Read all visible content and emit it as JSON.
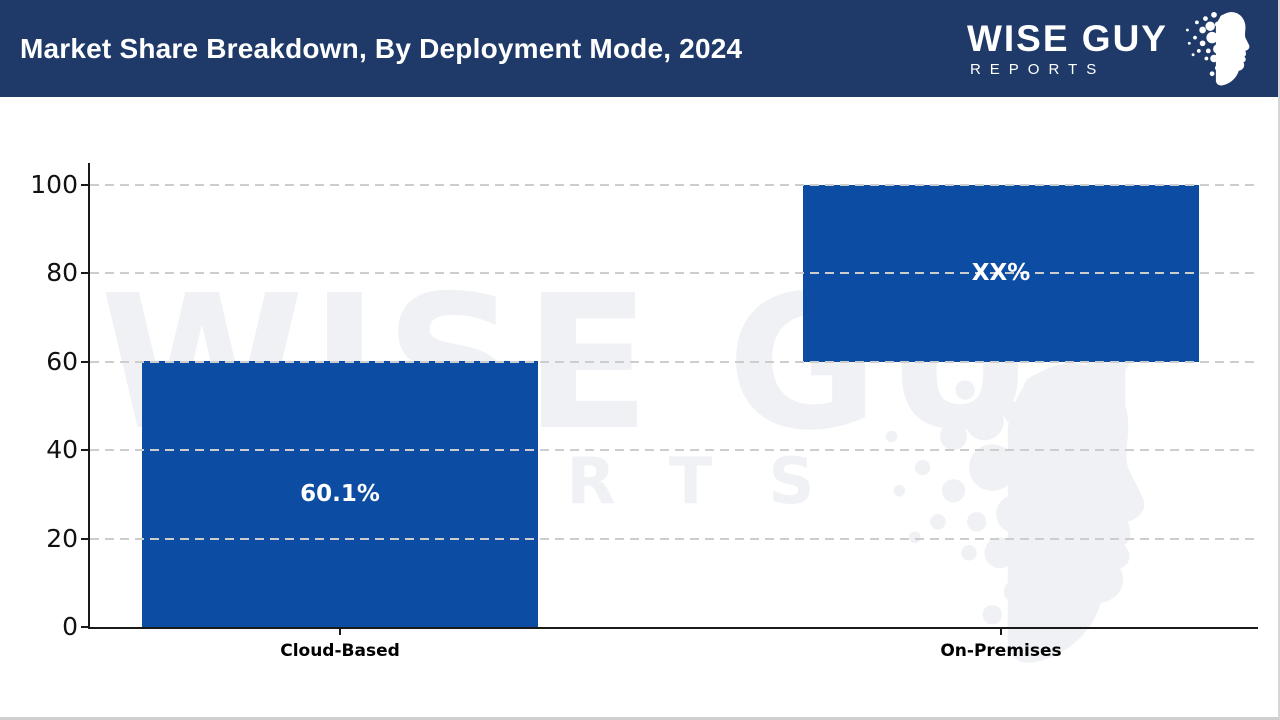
{
  "header": {
    "title": "Market Share Breakdown, By Deployment Mode, 2024",
    "logo": {
      "name": "WISE GUY",
      "subtitle": "REPORTS"
    }
  },
  "watermark": {
    "line1": "WISE GUY",
    "line2": "REPORTS"
  },
  "chart_data": {
    "type": "bar",
    "title": "Market Share Breakdown, By Deployment Mode, 2024",
    "categories": [
      "Cloud-Based",
      "On-Premises"
    ],
    "bars": [
      {
        "category": "Cloud-Based",
        "range": [
          0,
          60.1
        ],
        "label": "60.1%"
      },
      {
        "category": "On-Premises",
        "range": [
          60,
          100
        ],
        "label": "XX%"
      }
    ],
    "ylim": [
      0,
      105
    ],
    "yticks": [
      0,
      20,
      40,
      60,
      80,
      100
    ],
    "grid": "dashed-horizontal",
    "legend": "none",
    "bar_color": "#0c4da3",
    "grid_color": "#cdcdcd",
    "axis_color": "#1a1a1a"
  }
}
